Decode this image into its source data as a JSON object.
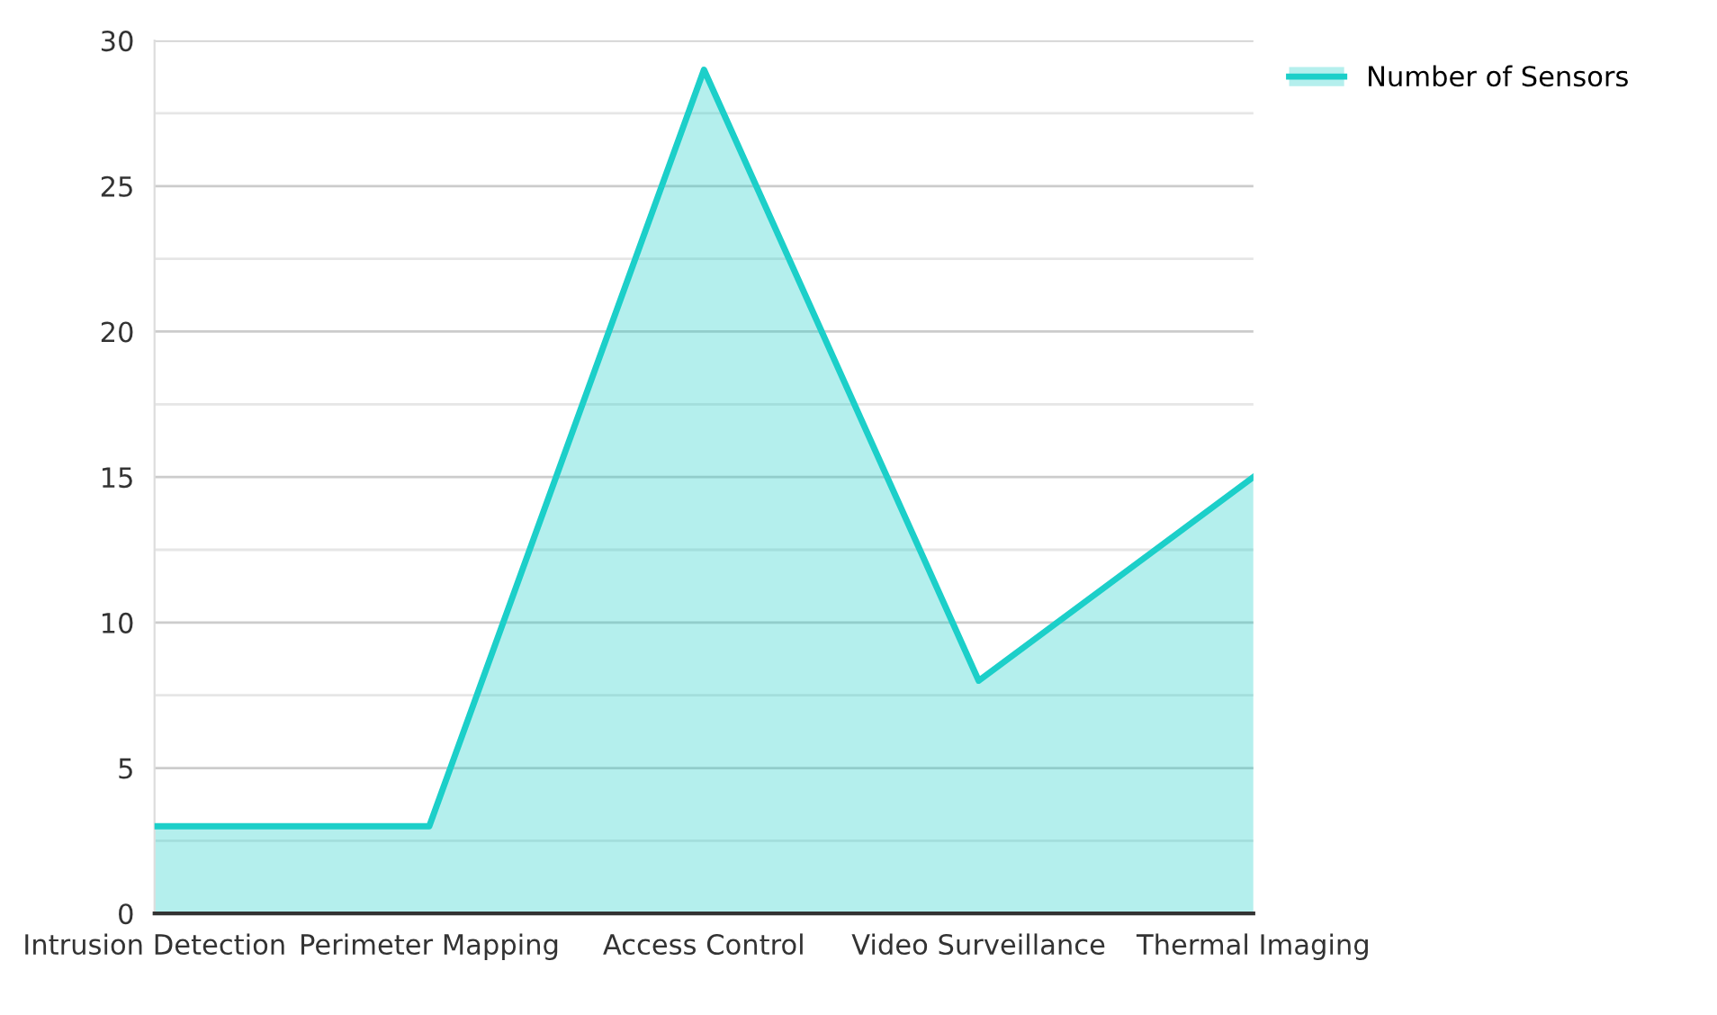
{
  "chart_data": {
    "type": "area",
    "categories": [
      "Intrusion Detection",
      "Perimeter Mapping",
      "Access Control",
      "Video Surveillance",
      "Thermal Imaging"
    ],
    "series": [
      {
        "name": "Number of Sensors",
        "color": "#1ccfc9",
        "values": [
          3,
          3,
          29,
          8,
          15
        ]
      }
    ],
    "ylim": [
      0,
      30
    ],
    "yticks": [
      0,
      {
        "value": 2.5,
        "label": null
      },
      5,
      {
        "value": 7.5,
        "label": null
      },
      10,
      {
        "value": 12.5,
        "label": null
      },
      15,
      {
        "value": 17.5,
        "label": null
      },
      20,
      {
        "value": 22.5,
        "label": null
      },
      25,
      {
        "value": 27.5,
        "label": null
      },
      30
    ],
    "grid": "y",
    "legend": "top right",
    "marker": "none",
    "line_style": "solid"
  }
}
